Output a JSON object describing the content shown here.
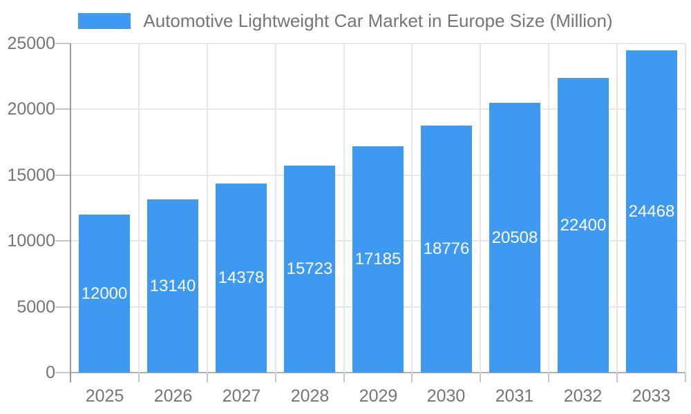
{
  "legend": {
    "label": "Automotive Lightweight Car Market in Europe Size (Million)"
  },
  "colors": {
    "bar": "#3D9AF0",
    "grid": "#e6e6e6",
    "axis": "#999999",
    "baseline": "#b0b0b0",
    "tick": "#c6c6c6",
    "text": "#757575",
    "bar_label": "#ffffff",
    "background": "#ffffff"
  },
  "chart_data": {
    "type": "bar",
    "title": "Automotive Lightweight Car Market in Europe Size (Million)",
    "categories": [
      "2025",
      "2026",
      "2027",
      "2028",
      "2029",
      "2030",
      "2031",
      "2032",
      "2033"
    ],
    "series": [
      {
        "name": "Automotive Lightweight Car Market in Europe Size (Million)",
        "values": [
          12000,
          13140,
          14378,
          15723,
          17185,
          18776,
          20508,
          22400,
          24468
        ]
      }
    ],
    "xlabel": "",
    "ylabel": "",
    "ylim": [
      0,
      25000
    ],
    "y_ticks": [
      0,
      5000,
      10000,
      15000,
      20000,
      25000
    ],
    "grid": true,
    "legend_position": "top",
    "value_labels": "inside-center"
  }
}
